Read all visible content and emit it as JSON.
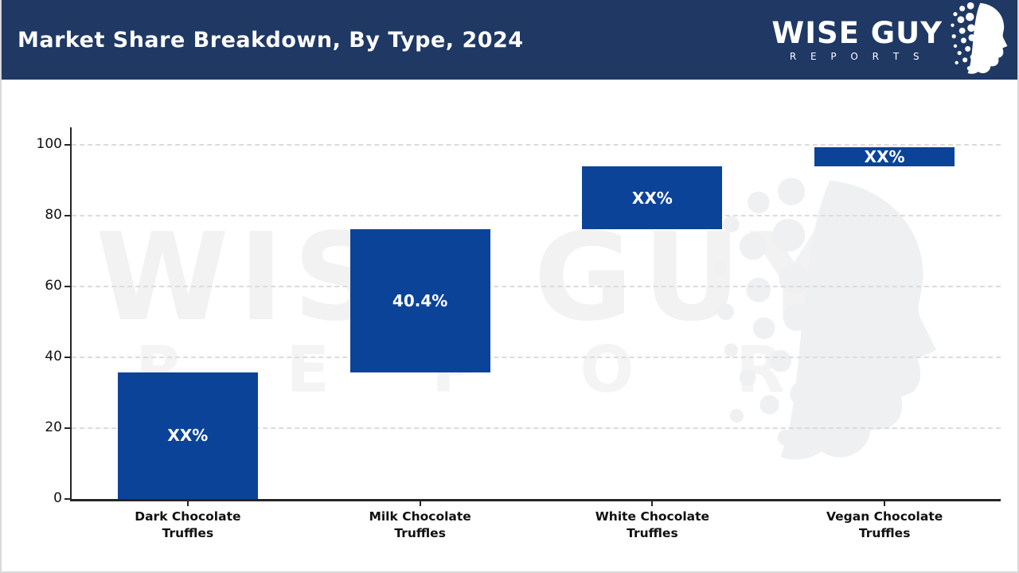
{
  "header": {
    "title": "Market Share Breakdown, By Type, 2024",
    "logo": {
      "line1": "WISE GUY",
      "line2": "R E P O R T S"
    }
  },
  "watermark": {
    "line1": "WISE GUY",
    "line2": "R E P O R T S"
  },
  "colors": {
    "header_bg": "#1f3864",
    "bar": "#0b4399",
    "bar_label": "#ffffff",
    "grid": "#dcdcdc",
    "axis": "#262626",
    "watermark": "#f2f2f3"
  },
  "chart_data": {
    "type": "bar",
    "subtype": "waterfall-floating-bars",
    "title": "Market Share Breakdown, By Type, 2024",
    "xlabel": "",
    "ylabel": "",
    "ylim": [
      0,
      105
    ],
    "yticks": [
      0,
      20,
      40,
      60,
      80,
      100
    ],
    "grid": "horizontal dashed",
    "legend": "none",
    "categories": [
      "Dark Chocolate Truffles",
      "Milk Chocolate Truffles",
      "White Chocolate Truffles",
      "Vegan Chocolate Truffles"
    ],
    "segments": [
      {
        "label_lines": [
          "Dark Chocolate",
          "Truffles"
        ],
        "start": 0,
        "end": 35.8,
        "data_label": "XX%"
      },
      {
        "label_lines": [
          "Milk Chocolate",
          "Truffles"
        ],
        "start": 35.8,
        "end": 76.2,
        "data_label": "40.4%"
      },
      {
        "label_lines": [
          "White Chocolate",
          "Truffles"
        ],
        "start": 76.2,
        "end": 94.0,
        "data_label": "XX%"
      },
      {
        "label_lines": [
          "Vegan Chocolate",
          "Truffles"
        ],
        "start": 94.0,
        "end": 99.3,
        "data_label": "XX%"
      }
    ]
  }
}
